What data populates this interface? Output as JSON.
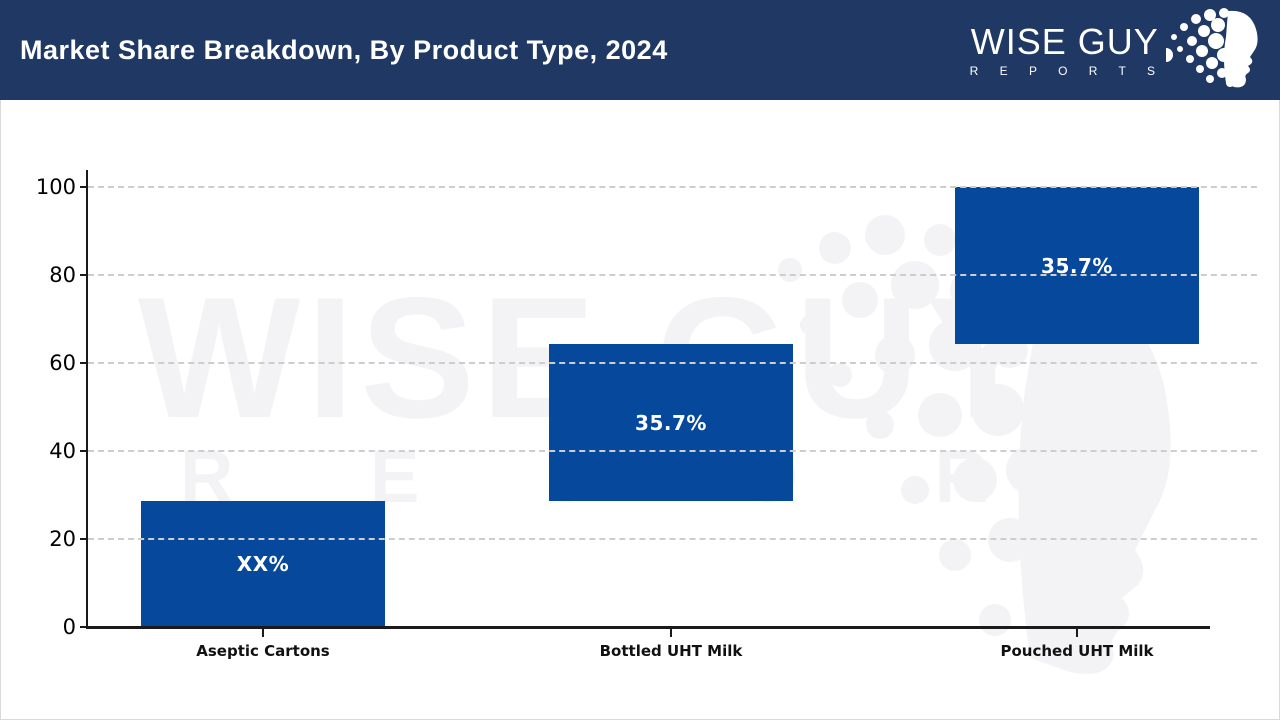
{
  "header": {
    "title": "Market Share Breakdown, By Product Type, 2024",
    "logo": {
      "line1": "WISE GUY",
      "line2": "R E P O R T S"
    }
  },
  "watermark": {
    "line1": "WISE GUY",
    "line2": "R E P O R T S"
  },
  "colors": {
    "header_bg": "#1f3864",
    "bar": "#05489c",
    "grid": "#cdcdcd",
    "axis": "#1a1a1a",
    "bar_label": "#ffffff",
    "watermark": "#f3f3f5"
  },
  "chart_data": {
    "type": "bar",
    "subtype": "waterfall",
    "title": "Market Share Breakdown, By Product Type, 2024",
    "categories": [
      "Aseptic Cartons",
      "Bottled UHT Milk",
      "Pouched UHT Milk"
    ],
    "values": [
      28.6,
      35.7,
      35.7
    ],
    "segment_starts": [
      0,
      28.6,
      64.3
    ],
    "segment_ends": [
      28.6,
      64.3,
      100
    ],
    "bar_labels": [
      "XX%",
      "35.7%",
      "35.7%"
    ],
    "xlabel": "",
    "ylabel": "",
    "ylim": [
      0,
      100
    ],
    "yticks": [
      0,
      20,
      40,
      60,
      80,
      100
    ],
    "grid": "dashed-horizontal",
    "legend": "none"
  }
}
